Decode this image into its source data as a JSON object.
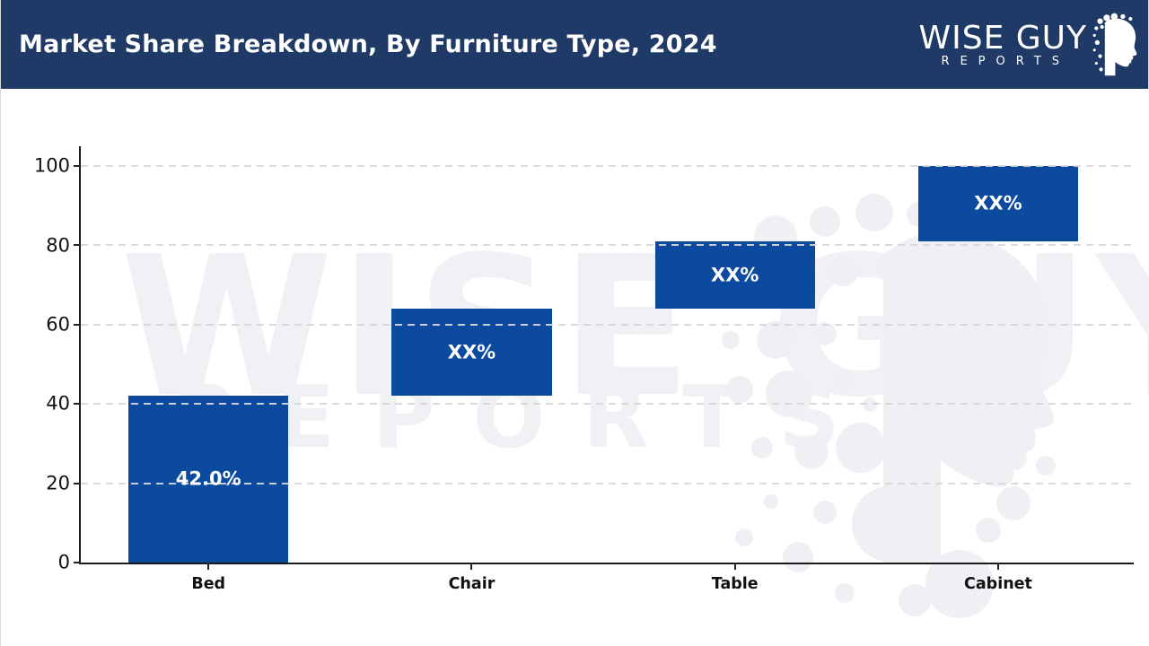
{
  "header": {
    "title": "Market Share Breakdown, By Furniture Type, 2024",
    "logo": {
      "wordmark": "WISE GUY",
      "subtext": "REPORTS"
    }
  },
  "watermark": {
    "wordmark": "WISE GUY",
    "subtext": "REPORTS"
  },
  "chart_data": {
    "type": "bar",
    "subtype": "floating-waterfall",
    "title": "Market Share Breakdown, By Furniture Type, 2024",
    "categories": [
      "Bed",
      "Chair",
      "Table",
      "Cabinet"
    ],
    "segments": [
      {
        "category": "Bed",
        "start": 0,
        "end": 42,
        "label": "42.0%"
      },
      {
        "category": "Chair",
        "start": 42,
        "end": 64,
        "label": "XX%"
      },
      {
        "category": "Table",
        "start": 64,
        "end": 81,
        "label": "XX%"
      },
      {
        "category": "Cabinet",
        "start": 81,
        "end": 100,
        "label": "XX%"
      }
    ],
    "yticks": [
      0,
      20,
      40,
      60,
      80,
      100
    ],
    "ylim": [
      0,
      105
    ],
    "xlabel": "",
    "ylabel": "",
    "grid": "horizontal-dashed",
    "legend": "none",
    "bar_color": "#0b4a9f",
    "bar_label_color": "#ffffff"
  },
  "colors": {
    "header_bg": "#203a68",
    "axis": "#1a1a1a",
    "grid": "#d7d7da",
    "watermark": "#f0f1f4",
    "background": "#ffffff"
  }
}
